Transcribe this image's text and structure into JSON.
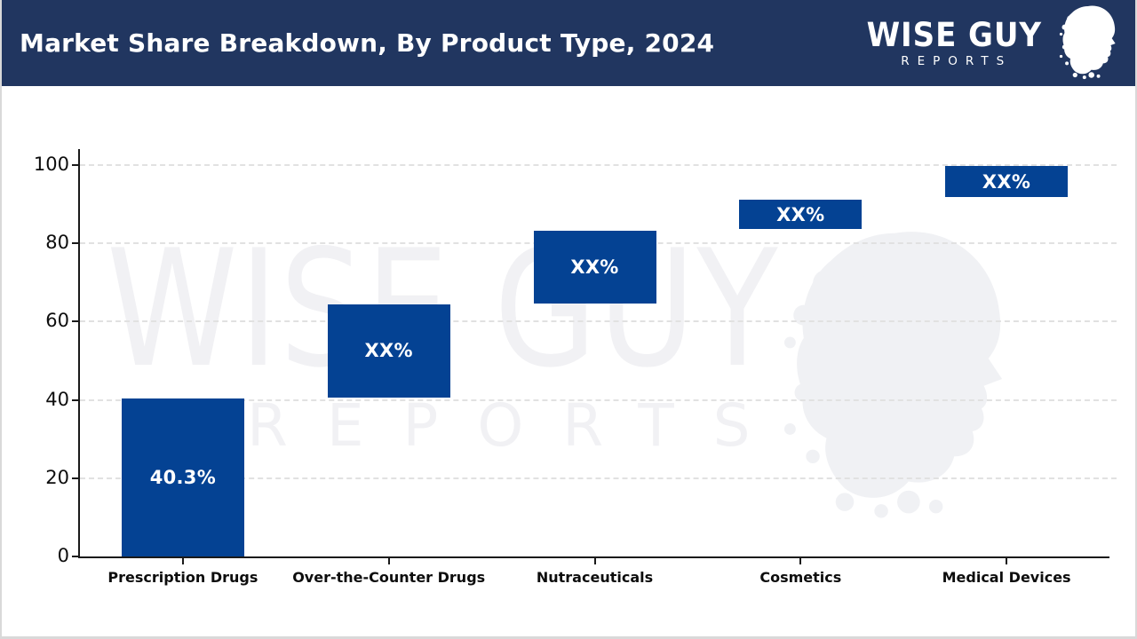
{
  "header": {
    "title": "Market Share Breakdown, By Product Type, 2024",
    "logo": {
      "line1": "WISE GUY",
      "line2": "REPORTS"
    }
  },
  "watermark": {
    "line1": "WISE GUY",
    "line2": "REPORTS"
  },
  "colors": {
    "header_bg": "#213660",
    "header_text": "#ffffff",
    "bar_blue": "#044293",
    "axis": "#1a1a1a",
    "grid": "#e1e1e1",
    "watermark": "#f1f1f4"
  },
  "chart_data": {
    "type": "bar",
    "subtype": "waterfall",
    "title": "Market Share Breakdown, By Product Type, 2024",
    "categories": [
      "Prescription Drugs",
      "Over-the-Counter Drugs",
      "Nutraceuticals",
      "Cosmetics",
      "Medical Devices"
    ],
    "segments": [
      {
        "label": "40.3%",
        "start": 0,
        "end": 40.3
      },
      {
        "label": "XX%",
        "start": 40.6,
        "end": 64.5
      },
      {
        "label": "XX%",
        "start": 64.7,
        "end": 83.3
      },
      {
        "label": "XX%",
        "start": 83.6,
        "end": 91.1
      },
      {
        "label": "XX%",
        "start": 91.8,
        "end": 99.7
      }
    ],
    "value_labels": [
      "40.3%",
      "XX%",
      "XX%",
      "XX%",
      "XX%"
    ],
    "ylim": [
      0,
      100
    ],
    "yticks": [
      0,
      20,
      40,
      60,
      80,
      100
    ],
    "xlabel": "",
    "ylabel": "",
    "grid": "horizontal-dashed",
    "legend": "none",
    "bar_color": "#044293"
  }
}
